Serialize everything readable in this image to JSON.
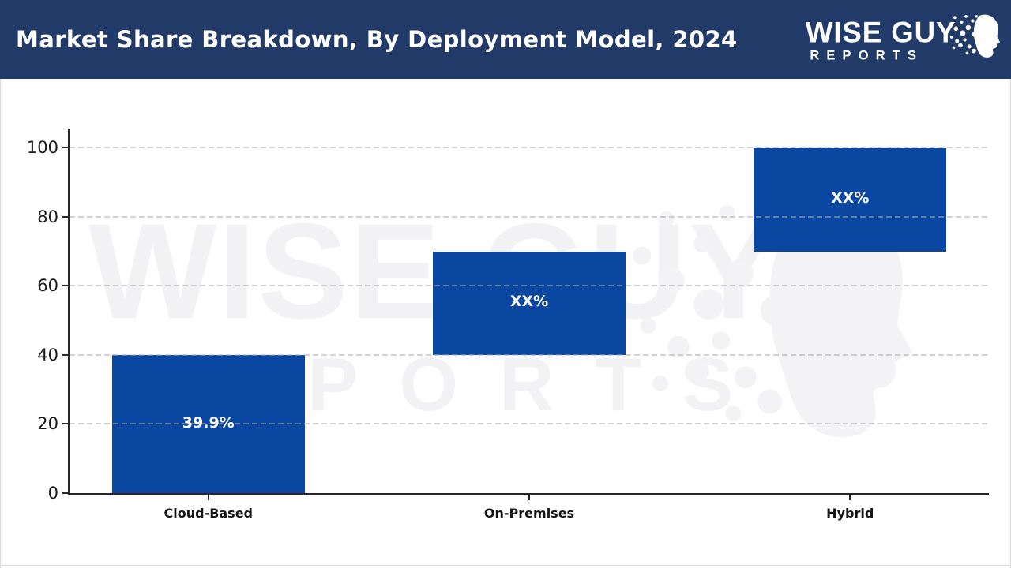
{
  "header": {
    "title": "Market Share Breakdown, By Deployment Model, 2024",
    "bg_color": "#223A67",
    "logo": {
      "line1": "WISE GUY",
      "line2": "REPORTS"
    }
  },
  "watermark": {
    "line1": "WISE GUY",
    "line2": "REPORTS"
  },
  "chart_data": {
    "type": "bar",
    "variant": "floating-waterfall-bars",
    "title": "Market Share Breakdown, By Deployment Model, 2024",
    "categories": [
      "Cloud-Based",
      "On-Premises",
      "Hybrid"
    ],
    "series": [
      {
        "name": "Market Share (%)",
        "ranges": [
          [
            0,
            39.9
          ],
          [
            39.9,
            69.9
          ],
          [
            69.9,
            100
          ]
        ],
        "labels": [
          "39.9%",
          "XX%",
          "XX%"
        ]
      }
    ],
    "xlabel": "",
    "ylabel": "",
    "ylim": [
      0,
      105
    ],
    "yticks": [
      0,
      20,
      40,
      60,
      80,
      100
    ],
    "grid": "horizontal-dashed",
    "legend": "none",
    "bar_color": "#0A47A0",
    "bar_label_color": "#FFFFFF",
    "grid_color": "#D9D9D9",
    "axis_color": "#262626",
    "tick_text_color": "#1A1A1A"
  }
}
